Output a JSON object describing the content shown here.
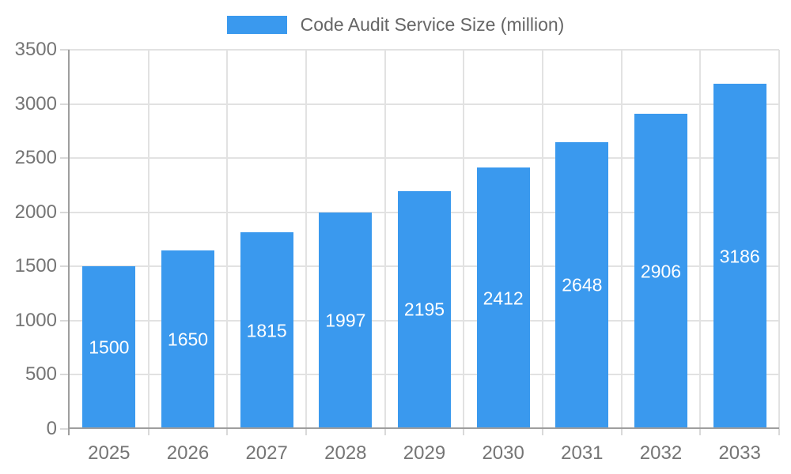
{
  "legend": {
    "label": "Code Audit Service Size (million)"
  },
  "colors": {
    "bar": "#3a99ee",
    "grid": "#e2e2e2",
    "tick": "#d9d9d9",
    "axis_line": "#9e9e9e",
    "axis_text": "#757575",
    "legend_text": "#666666",
    "value_text": "#ffffff",
    "background": "#ffffff"
  },
  "chart_data": {
    "type": "bar",
    "title": "",
    "xlabel": "",
    "ylabel": "",
    "categories": [
      "2025",
      "2026",
      "2027",
      "2028",
      "2029",
      "2030",
      "2031",
      "2032",
      "2033"
    ],
    "series": [
      {
        "name": "Code Audit Service Size (million)",
        "values": [
          1500,
          1650,
          1815,
          1997,
          2195,
          2412,
          2648,
          2906,
          3186
        ]
      }
    ],
    "ylim": [
      0,
      3500
    ],
    "yticks": [
      0,
      500,
      1000,
      1500,
      2000,
      2500,
      3000,
      3500
    ],
    "grid": true,
    "legend_position": "top",
    "value_label_position": "inside-center"
  }
}
